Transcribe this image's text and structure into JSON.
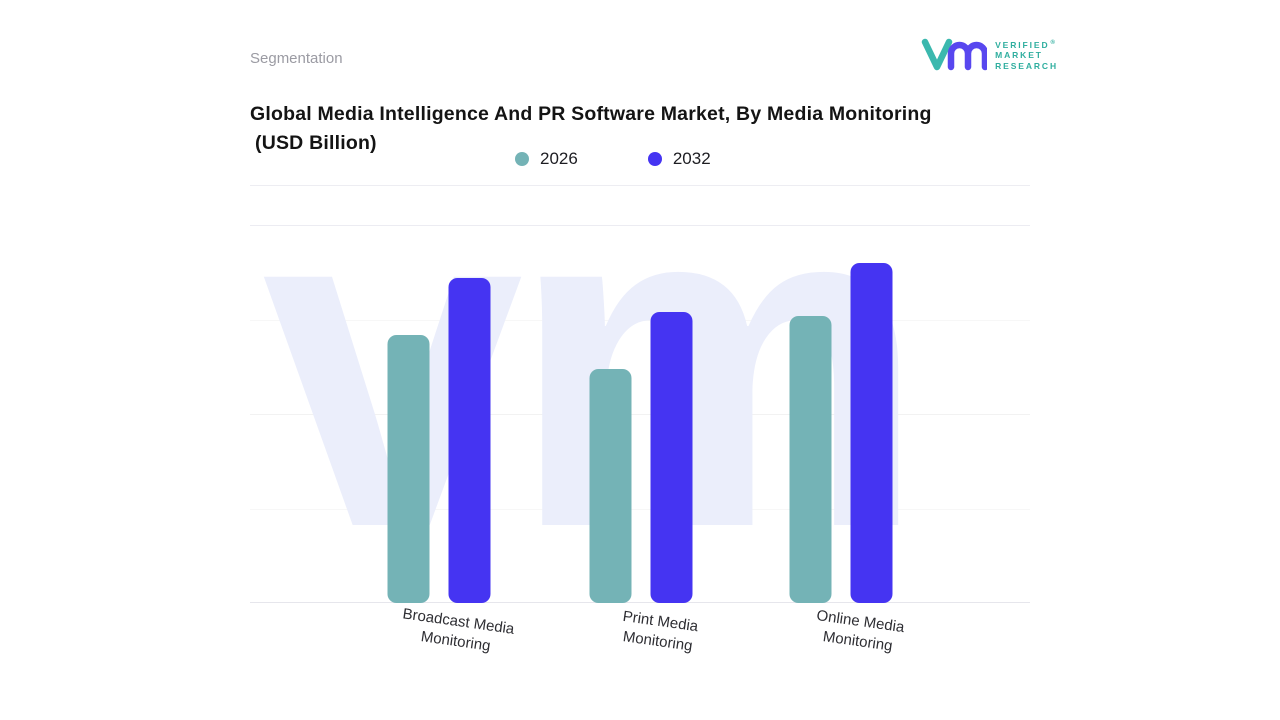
{
  "header": {
    "section_label": "Segmentation"
  },
  "logo": {
    "lines": [
      "VERIFIED",
      "MARKET",
      "RESEARCH"
    ],
    "registered_mark": "®",
    "teal": "#2fae9f",
    "glyph_teal": "#3bb8ae",
    "glyph_purple": "#5847ef",
    "watermark": "vm"
  },
  "title": {
    "line1": "Global Media Intelligence And PR Software Market, By Media Monitoring",
    "line2": "(USD Billion)"
  },
  "chart_data": {
    "type": "bar",
    "title": "Global Media Intelligence And PR Software Market, By Media Monitoring (USD Billion)",
    "categories": [
      "Broadcast Media Monitoring",
      "Print Media Monitoring",
      "Online Media Monitoring"
    ],
    "series": [
      {
        "name": "2026",
        "color": "#74b3b6",
        "values": [
          7.1,
          6.2,
          7.6
        ]
      },
      {
        "name": "2032",
        "color": "#4534f2",
        "values": [
          8.6,
          7.7,
          9.0
        ]
      }
    ],
    "xlabel": "",
    "ylabel": "",
    "ylim": [
      0,
      10
    ],
    "value_axis_visible": false,
    "grid": "horizontal",
    "legend_position": "top"
  }
}
